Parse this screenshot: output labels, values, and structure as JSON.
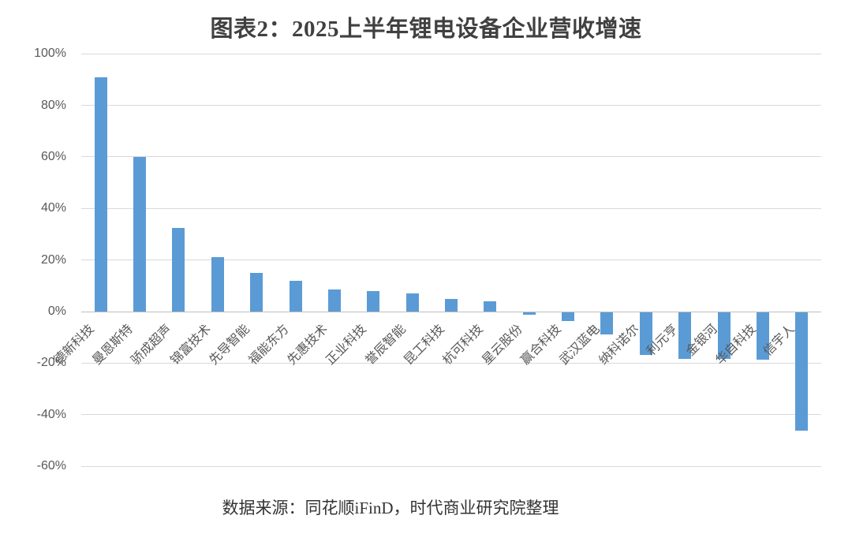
{
  "title": "图表2：2025上半年锂电设备企业营收增速",
  "source_note": "数据来源：同花顺iFinD，时代商业研究院整理",
  "colors": {
    "bar": "#5B9BD5",
    "gridline": "#D9D9D9",
    "zero_line": "#BFBFBF",
    "axis_text": "#595959",
    "title_text": "#404040",
    "source_text": "#333333",
    "background": "#FFFFFF"
  },
  "chart_data": {
    "type": "bar",
    "title": "图表2：2025上半年锂电设备企业营收增速",
    "categories": [
      "德新科技",
      "曼恩斯特",
      "骄成超声",
      "锦富技术",
      "先导智能",
      "福能东方",
      "先惠技术",
      "正业科技",
      "誉辰智能",
      "昆工科技",
      "杭可科技",
      "星云股份",
      "赢合科技",
      "武汉蓝电",
      "纳科诺尔",
      "利元亨",
      "金银河",
      "华自科技",
      "信宇人"
    ],
    "values": [
      91,
      60,
      32.5,
      21,
      15,
      12,
      8.5,
      8,
      7,
      5,
      4,
      -1,
      -3.5,
      -8.5,
      -16.5,
      -18,
      -18,
      -18.5,
      -46
    ],
    "unit": "%",
    "xlabel": "",
    "ylabel": "",
    "ylim": [
      -60,
      100
    ],
    "ytick_step": 20,
    "ytick_labels": [
      "100%",
      "80%",
      "60%",
      "40%",
      "20%",
      "0%",
      "-20%",
      "-40%",
      "-60%"
    ],
    "grid": true,
    "legend": "none",
    "bar_color": "#5B9BD5"
  }
}
